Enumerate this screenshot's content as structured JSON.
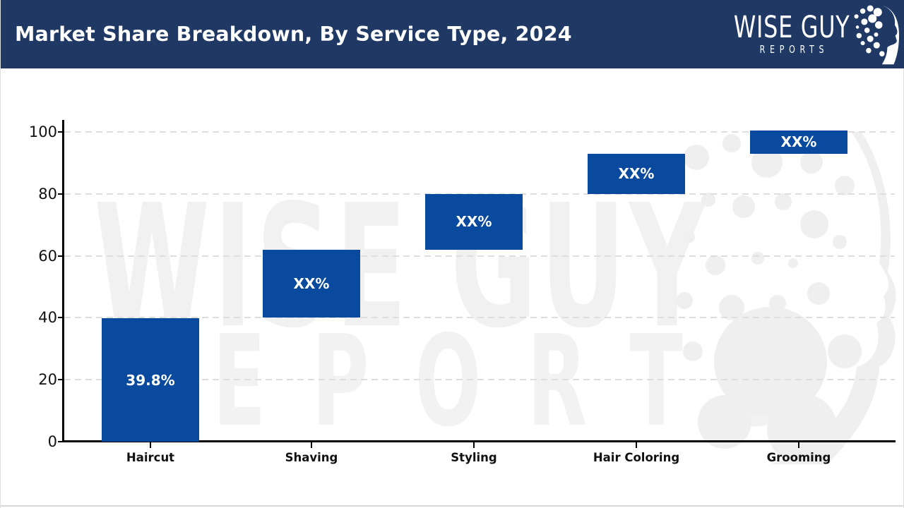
{
  "header": {
    "title": "Market Share Breakdown, By Service Type, 2024",
    "logo": {
      "line1": "WISE GUY",
      "line2": "REPORTS"
    },
    "bg_color": "#1f3864"
  },
  "watermark": {
    "line1": "WISE GUY",
    "line2": "REPORTS"
  },
  "chart_data": {
    "type": "bar",
    "subtype": "waterfall",
    "title": "Market Share Breakdown, By Service Type, 2024",
    "categories": [
      "Haircut",
      "Shaving",
      "Styling",
      "Hair Coloring",
      "Grooming"
    ],
    "segments": [
      {
        "category": "Haircut",
        "start": 0,
        "end": 39.8,
        "label": "39.8%"
      },
      {
        "category": "Shaving",
        "start": 40,
        "end": 62,
        "label": "XX%"
      },
      {
        "category": "Styling",
        "start": 62,
        "end": 80,
        "label": "XX%"
      },
      {
        "category": "Hair Coloring",
        "start": 80,
        "end": 93,
        "label": "XX%"
      },
      {
        "category": "Grooming",
        "start": 93,
        "end": 100.5,
        "label": "XX%"
      }
    ],
    "y_ticks": [
      0,
      20,
      40,
      60,
      80,
      100
    ],
    "ylim": [
      0,
      104
    ],
    "xlabel": "",
    "ylabel": "",
    "grid": "horizontal-dashed",
    "legend": "none",
    "bar_color": "#0a4a9e",
    "bar_label_color": "#ffffff"
  }
}
